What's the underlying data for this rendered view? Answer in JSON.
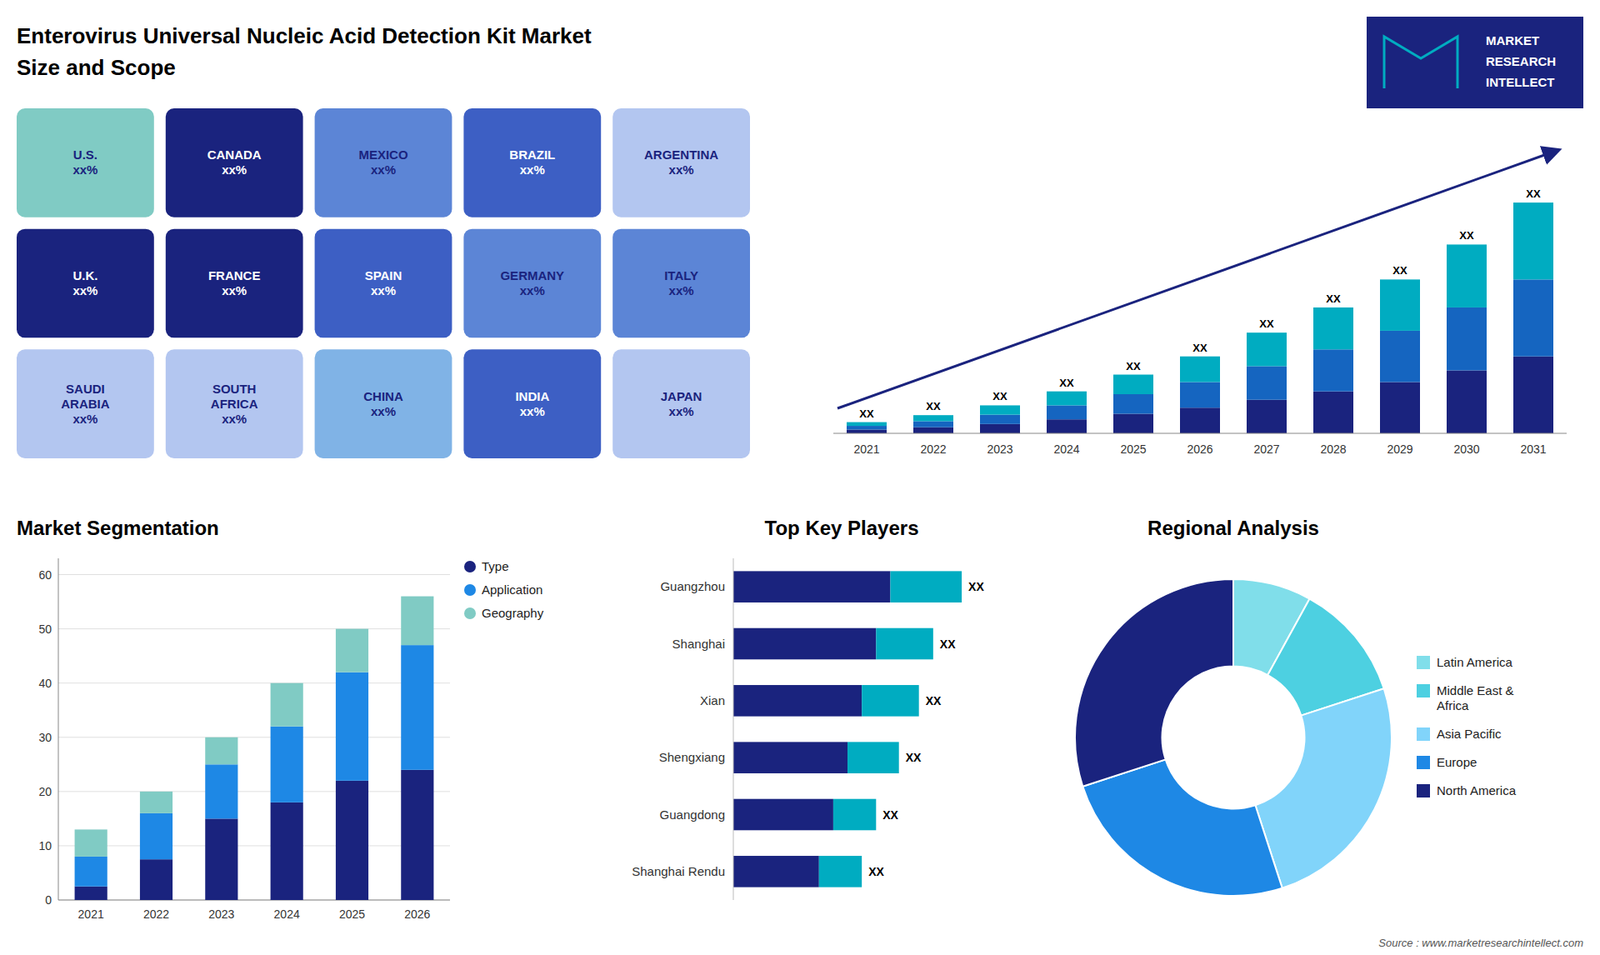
{
  "chart_data": [
    {
      "type": "map",
      "title": "Enterovirus Universal Nucleic Acid Detection Kit Market",
      "subtitle": "Size and Scope",
      "categories": [
        "U.S.\nxx%",
        "CANADA\nxx%",
        "MEXICO\nxx%",
        "BRAZIL\nxx%",
        "ARGENTINA\nxx%",
        "U.K.\nxx%",
        "FRANCE\nxx%",
        "SPAIN\nxx%",
        "GERMANY\nxx%",
        "ITALY\nxx%",
        "SAUDI\nARABIA\nxx%",
        "SOUTH\nAFRICA\nxx%",
        "CHINA\nxx%",
        "INDIA\nxx%",
        "JAPAN\nxx%"
      ],
      "colors": [
        "#80cbc4",
        "#1a237e",
        "#5c85d6",
        "#3d5fc4",
        "#b3c6f0",
        "#1a237e",
        "#1a237e",
        "#3d5fc4",
        "#5c85d6",
        "#5c85d6",
        "#b3c6f0",
        "#b3c6f0",
        "#80b3e6",
        "#3d5fc4",
        "#b3c6f0"
      ],
      "annotations": [
        "MARKET",
        "RESEARCH",
        "INTELLECT",
        "Source : www.marketresearchintellect.com"
      ]
    },
    {
      "type": "bar",
      "stacked": true,
      "categories": [
        "2021",
        "2022",
        "2023",
        "2024",
        "2025",
        "2026",
        "2027",
        "2028",
        "2029",
        "2030",
        "2031"
      ],
      "series": [
        {
          "color": "#1a237e",
          "values": [
            0.8,
            1.3,
            2.0,
            3.0,
            4.2,
            5.5,
            7.2,
            9.0,
            11.0,
            13.5,
            16.5
          ]
        },
        {
          "color": "#1565c0",
          "values": [
            0.8,
            1.3,
            2.0,
            3.0,
            4.2,
            5.5,
            7.2,
            9.0,
            11.0,
            13.5,
            16.5
          ]
        },
        {
          "color": "#00acc1",
          "values": [
            0.8,
            1.3,
            2.0,
            3.0,
            4.2,
            5.5,
            7.2,
            9.0,
            11.0,
            13.5,
            16.5
          ]
        }
      ],
      "ylim": [
        0,
        64.35
      ],
      "tick_labels": "x",
      "grid": false,
      "annotations": [
        "XX",
        "XX",
        "XX",
        "XX",
        "XX",
        "XX",
        "XX",
        "XX",
        "XX",
        "XX",
        "XX"
      ]
    },
    {
      "type": "bar",
      "title": "Market Segmentation",
      "stacked": true,
      "categories": [
        "2021",
        "2022",
        "2023",
        "2024",
        "2025",
        "2026"
      ],
      "series": [
        {
          "name": "Type",
          "color": "#1a237e",
          "values": [
            2.5,
            7.5,
            15,
            18,
            22,
            24
          ]
        },
        {
          "name": "Application",
          "color": "#1e88e5",
          "values": [
            5.5,
            8.5,
            10,
            14,
            20,
            23
          ]
        },
        {
          "name": "Geography",
          "color": "#80cbc4",
          "values": [
            5.0,
            4.0,
            5,
            8,
            8,
            9
          ]
        }
      ],
      "ylim": [
        0,
        63
      ],
      "yticks": [
        0,
        10,
        20,
        30,
        40,
        50,
        60
      ],
      "grid": true,
      "legend": "right"
    },
    {
      "type": "bar",
      "title": "Top Key Players",
      "orientation": "horizontal",
      "stacked": true,
      "categories": [
        "Guangzhou",
        "Shanghai",
        "Xian",
        "Shengxiang",
        "Guangdong",
        "Shanghai Rendu"
      ],
      "series": [
        {
          "color": "#1a237e",
          "values": [
            5.5,
            5.0,
            4.5,
            4.0,
            3.5,
            3.0
          ]
        },
        {
          "color": "#00acc1",
          "values": [
            2.5,
            2.0,
            2.0,
            1.8,
            1.5,
            1.5
          ]
        }
      ],
      "xlim": [
        0,
        10.8
      ],
      "tick_labels": "y",
      "grid": false,
      "annotations": [
        "XX",
        "XX",
        "XX",
        "XX",
        "XX",
        "XX"
      ]
    },
    {
      "type": "donut",
      "title": "Regional Analysis",
      "categories": [
        "Latin America",
        "Middle East &\nAfrica",
        "Asia Pacific",
        "Europe",
        "North America"
      ],
      "values": [
        8,
        12,
        25,
        25,
        30
      ],
      "colors": [
        "#80deea",
        "#4dd0e1",
        "#81d4fa",
        "#1e88e5",
        "#1a237e"
      ],
      "legend": "right"
    }
  ]
}
